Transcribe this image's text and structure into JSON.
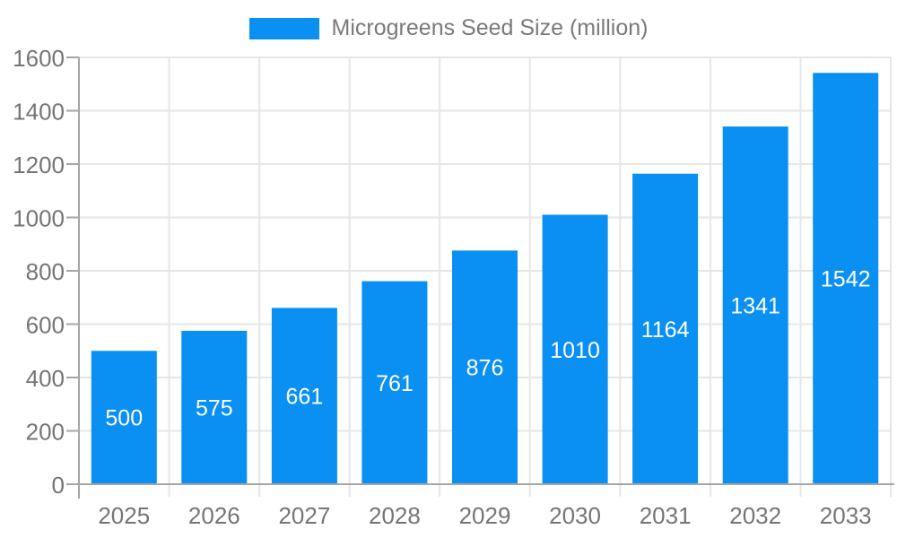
{
  "chart_data": {
    "type": "bar",
    "title": "",
    "legend": "Microgreens Seed Size (million)",
    "legend_position": "top",
    "categories": [
      "2025",
      "2026",
      "2027",
      "2028",
      "2029",
      "2030",
      "2031",
      "2032",
      "2033"
    ],
    "values": [
      500,
      575,
      661,
      761,
      876,
      1010,
      1164,
      1341,
      1542
    ],
    "xlabel": "",
    "ylabel": "",
    "ylim": [
      0,
      1600
    ],
    "ytick_step": 200,
    "ytick_labels": [
      "0",
      "200",
      "400",
      "600",
      "800",
      "1000",
      "1200",
      "1400",
      "1600"
    ],
    "grid": true,
    "bar_color": "#0a8ff2",
    "value_label_color": "#ffffff",
    "axis_tick_label_color": "#757575",
    "legend_text_color": "#7a7a7a",
    "gridline_color": "#e6e6e6",
    "axis_line_color": "#a6a6a6"
  }
}
